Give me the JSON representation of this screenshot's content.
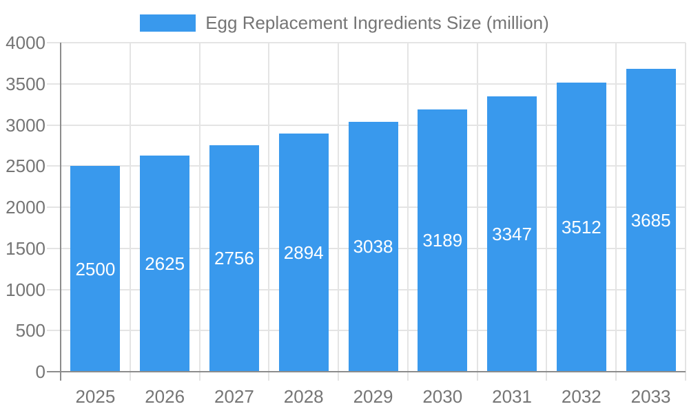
{
  "legend": {
    "label": "Egg Replacement Ingredients Size (million)"
  },
  "colors": {
    "bar": "#3999ed",
    "axis": "#8c8c8c",
    "grid": "#e4e4e4",
    "tick_text": "#757575",
    "bar_label_text": "#ffffff",
    "background": "#ffffff"
  },
  "chart_data": {
    "type": "bar",
    "title": "Egg Replacement Ingredients Size (million)",
    "categories": [
      "2025",
      "2026",
      "2027",
      "2028",
      "2029",
      "2030",
      "2031",
      "2032",
      "2033"
    ],
    "values": [
      2500,
      2625,
      2756,
      2894,
      3038,
      3189,
      3347,
      3512,
      3685
    ],
    "xlabel": "",
    "ylabel": "",
    "ylim": [
      0,
      4000
    ],
    "yticks": [
      0,
      500,
      1000,
      1500,
      2000,
      2500,
      3000,
      3500,
      4000
    ],
    "grid": true,
    "legend_position": "top-center",
    "bar_label_position": "inside-center"
  }
}
